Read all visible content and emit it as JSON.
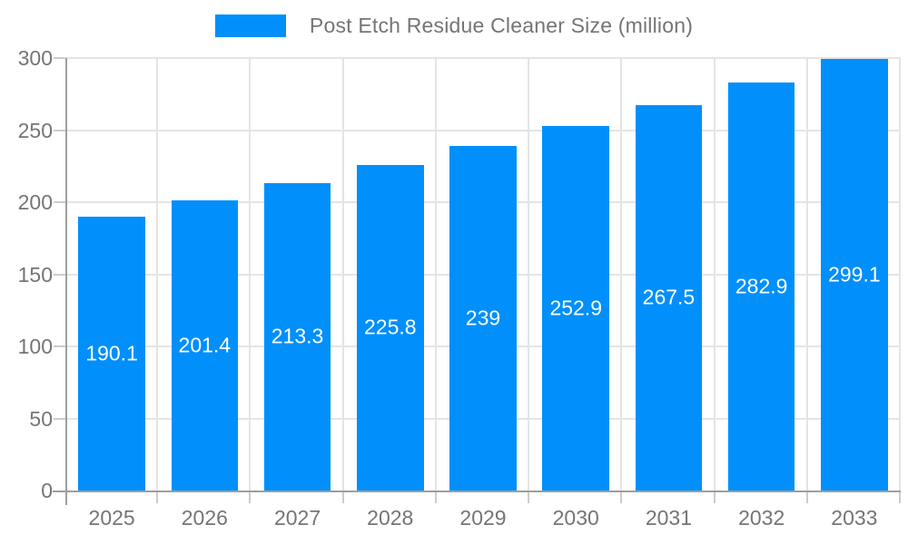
{
  "legend": {
    "label": "Post Etch Residue Cleaner Size (million)"
  },
  "chart_data": {
    "type": "bar",
    "title": "Post Etch Residue Cleaner Size (million)",
    "categories": [
      "2025",
      "2026",
      "2027",
      "2028",
      "2029",
      "2030",
      "2031",
      "2032",
      "2033"
    ],
    "values": [
      190.1,
      201.4,
      213.3,
      225.8,
      239,
      252.9,
      267.5,
      282.9,
      299.1
    ],
    "xlabel": "",
    "ylabel": "",
    "ylim": [
      0,
      300
    ],
    "yticks": [
      0,
      50,
      100,
      150,
      200,
      250,
      300
    ],
    "grid": true,
    "legend_position": "top-center",
    "bar_color": "#008FFB",
    "bar_label_color": "#ffffff",
    "axis_text_color": "#757575",
    "grid_color": "#e4e4e4",
    "axis_line_color": "#9e9e9e",
    "tick_color": "#cccccc"
  }
}
